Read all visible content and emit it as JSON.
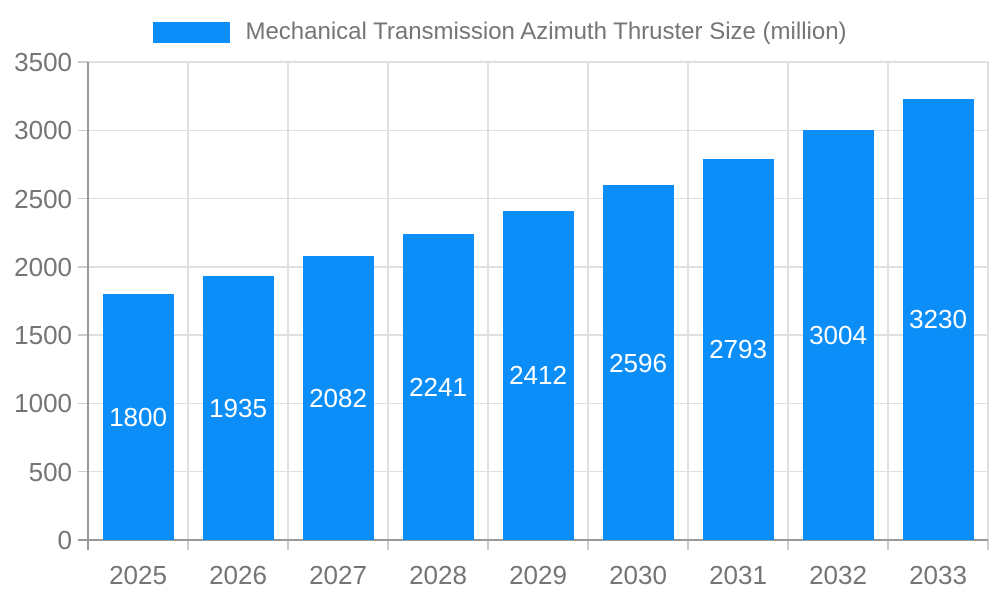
{
  "chart_data": {
    "type": "bar",
    "title": "Mechanical Transmission Azimuth Thruster Size (million)",
    "legend": "Mechanical Transmission Azimuth Thruster Size (million)",
    "legend_position": "top-center",
    "categories": [
      "2025",
      "2026",
      "2027",
      "2028",
      "2029",
      "2030",
      "2031",
      "2032",
      "2033"
    ],
    "values": [
      1800,
      1935,
      2082,
      2241,
      2412,
      2596,
      2793,
      3004,
      3230
    ],
    "xlabel": "",
    "ylabel": "",
    "ylim": [
      0,
      3500
    ],
    "yticks": [
      0,
      500,
      1000,
      1500,
      2000,
      2500,
      3000,
      3500
    ],
    "grid": true,
    "value_labels": "inside-center",
    "colors": {
      "bar": "#0C8EF8",
      "text": "#757575",
      "grid": "#E0E0E0",
      "tick": "#CCCCCC",
      "axis": "#999999",
      "value_label": "#FFFFFF",
      "background": "#FFFFFF"
    }
  }
}
